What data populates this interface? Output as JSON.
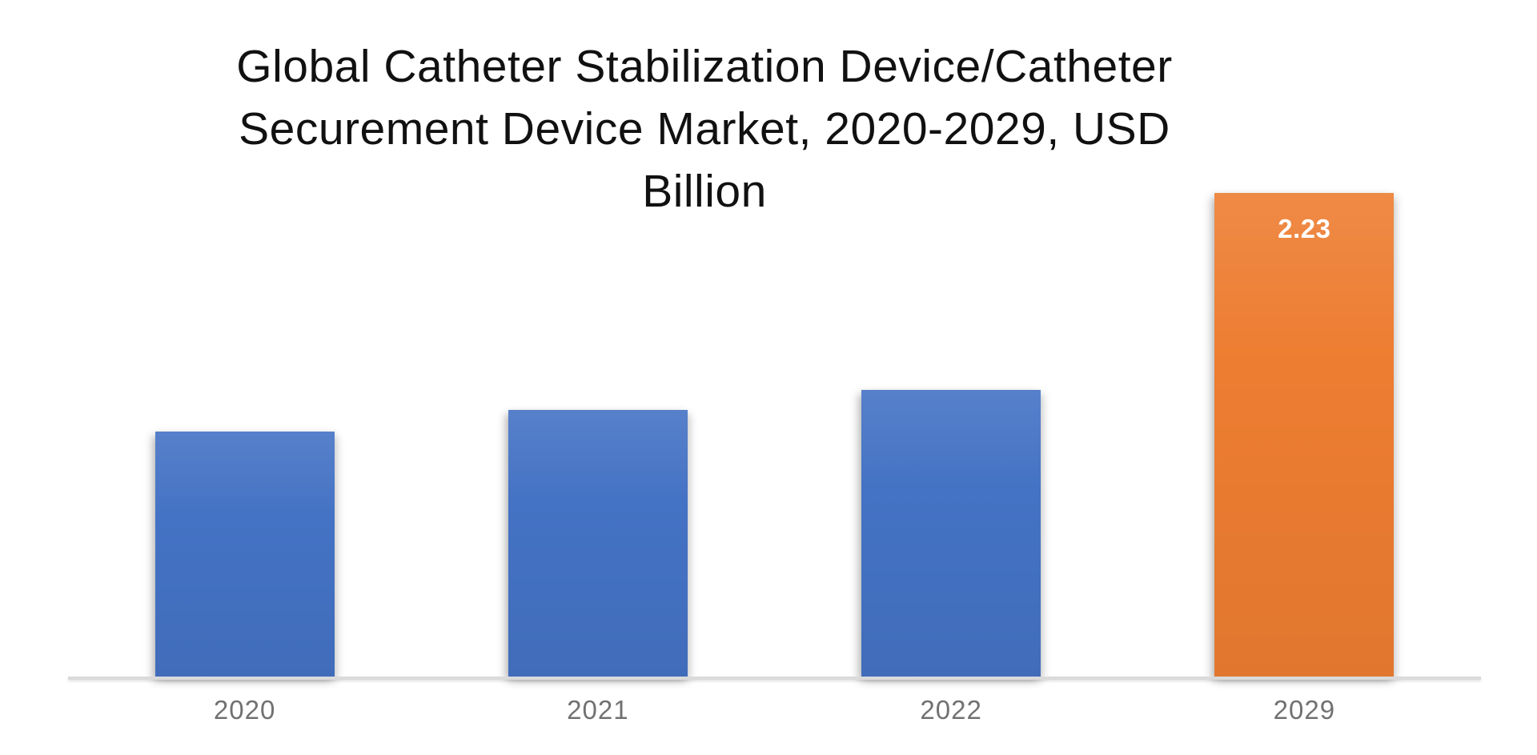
{
  "title": {
    "full": "Global Catheter Stabilization Device/Catheter Securement Device Market, 2020-2029, USD Billion",
    "line1": "Global Catheter Stabilization Device/Catheter",
    "line2": "Securement Device Market, 2020-2029, USD",
    "line3": "Billion"
  },
  "chart_data": {
    "type": "bar",
    "title": "Global Catheter Stabilization Device/Catheter Securement Device Market, 2020-2029, USD Billion",
    "categories": [
      "2020",
      "2021",
      "2022",
      "2029"
    ],
    "values": [
      1.13,
      1.23,
      1.32,
      2.23
    ],
    "data_labels": [
      "",
      "",
      "",
      "2.23"
    ],
    "bar_colors": [
      "#4472C4",
      "#4472C4",
      "#4472C4",
      "#ED7D31"
    ],
    "xlabel": "",
    "ylabel": "",
    "ylim": [
      0,
      2.23
    ],
    "grid": false,
    "legend": "none",
    "y_axis_visible": false,
    "axis_line_color": "#dadada",
    "tick_label_color": "#717171",
    "data_label_color": "#ffffff",
    "background_color": "#ffffff"
  }
}
